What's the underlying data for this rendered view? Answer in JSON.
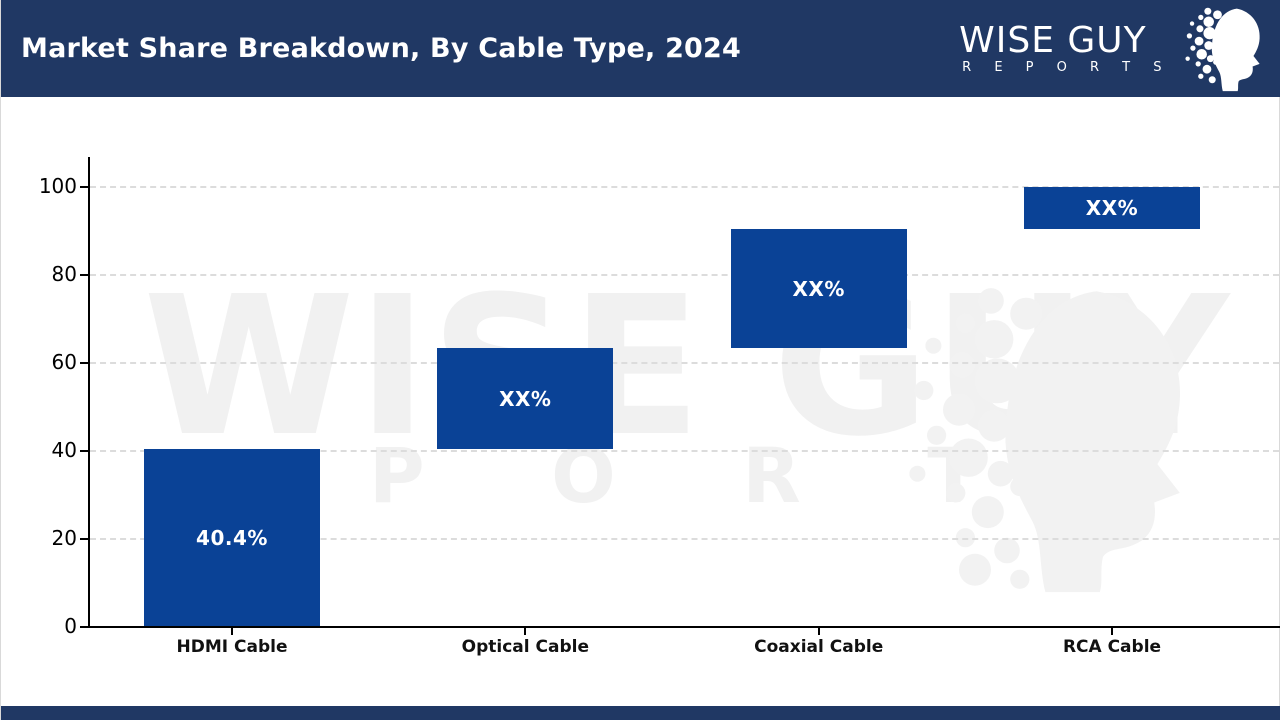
{
  "header": {
    "title": "Market Share Breakdown, By Cable Type, 2024",
    "bg_color": "#203864",
    "logo": {
      "line1": "WISE GUY",
      "line2": "R E P O R T S"
    }
  },
  "watermark": {
    "line1": "WISE GUY",
    "line2": "P O R T S"
  },
  "footer": {
    "bg_color": "#203864"
  },
  "chart_data": {
    "type": "bar",
    "variant": "waterfall",
    "title": "Market Share Breakdown, By Cable Type, 2024",
    "categories": [
      "HDMI Cable",
      "Optical Cable",
      "Coaxial Cable",
      "RCA Cable"
    ],
    "segments": [
      {
        "category": "HDMI Cable",
        "start": 0,
        "end": 40.4,
        "label": "40.4%"
      },
      {
        "category": "Optical Cable",
        "start": 40.4,
        "end": 63.4,
        "label": "XX%"
      },
      {
        "category": "Coaxial Cable",
        "start": 63.4,
        "end": 90.4,
        "label": "XX%"
      },
      {
        "category": "RCA Cable",
        "start": 90.4,
        "end": 100,
        "label": "XX%"
      }
    ],
    "yticks": [
      0,
      20,
      40,
      60,
      80,
      100
    ],
    "ylim": [
      0,
      105
    ],
    "xlabel": "",
    "ylabel": "",
    "grid": "horizontal-dashed",
    "legend": "none",
    "bar_color": "#0a4296",
    "bar_label_color": "#ffffff"
  }
}
